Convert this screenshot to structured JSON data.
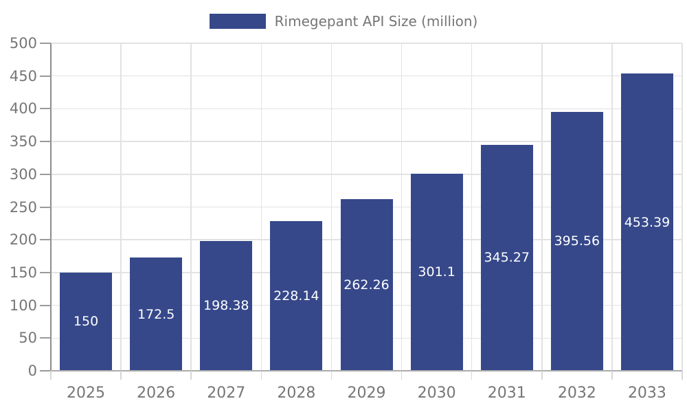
{
  "legend": {
    "label": "Rimegepant API Size (million)"
  },
  "chart_data": {
    "type": "bar",
    "title": "Rimegepant API Size (million)",
    "categories": [
      "2025",
      "2026",
      "2027",
      "2028",
      "2029",
      "2030",
      "2031",
      "2032",
      "2033"
    ],
    "values": [
      150,
      172.5,
      198.38,
      228.14,
      262.26,
      301.1,
      345.27,
      395.56,
      453.39
    ],
    "value_labels": [
      "150",
      "172.5",
      "198.38",
      "228.14",
      "262.26",
      "301.1",
      "345.27",
      "395.56",
      "453.39"
    ],
    "xlabel": "",
    "ylabel": "",
    "ylim": [
      0,
      500
    ],
    "ytick_step": 50,
    "ytick_labels": [
      "0",
      "50",
      "100",
      "150",
      "200",
      "250",
      "300",
      "350",
      "400",
      "450",
      "500"
    ],
    "grid": true,
    "legend_position": "top-center",
    "colors": {
      "bar": "#36488A",
      "axis_label": "#767676",
      "legend_text": "#757575",
      "gridline": "#E2E2E2",
      "y_axis_line": "#8C8C8C",
      "x_axis_line": "#ABABAB",
      "y_tick": "#9A9A9A",
      "x_tick": "#D6D6D6",
      "value_label": "#FFFFFF",
      "background": "#FFFFFF"
    }
  }
}
